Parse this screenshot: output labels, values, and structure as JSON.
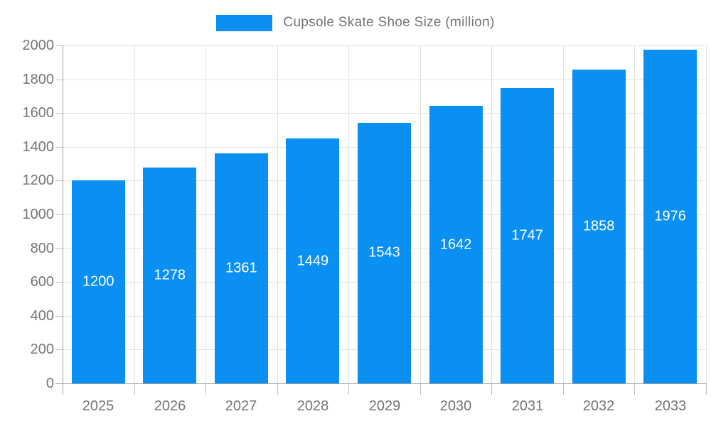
{
  "chart_data": {
    "type": "bar",
    "title": "Cupsole Skate Shoe Size (million)",
    "categories": [
      "2025",
      "2026",
      "2027",
      "2028",
      "2029",
      "2030",
      "2031",
      "2032",
      "2033"
    ],
    "values": [
      1200,
      1278,
      1361,
      1449,
      1543,
      1642,
      1747,
      1858,
      1976
    ],
    "series_name": "Cupsole Skate Shoe Size (million)",
    "value_labels": [
      "1200",
      "1278",
      "1361",
      "1449",
      "1543",
      "1642",
      "1747",
      "1858",
      "1976"
    ],
    "xlabel": "",
    "ylabel": "",
    "ylim": [
      0,
      2000
    ],
    "ytick_step": 200,
    "ytick_labels": [
      "0",
      "200",
      "400",
      "600",
      "800",
      "1000",
      "1200",
      "1400",
      "1600",
      "1800",
      "2000"
    ],
    "grid": true,
    "legend_position": "top",
    "colors": {
      "bar": "#0a8ff2",
      "value_label": "#ffffff",
      "axis_text": "#757575",
      "legend_text": "#757575",
      "gridline": "#e2e2e2",
      "axis_line": "#9e9e9e",
      "tick": "#c0c0c0",
      "background": "#ffffff"
    }
  }
}
